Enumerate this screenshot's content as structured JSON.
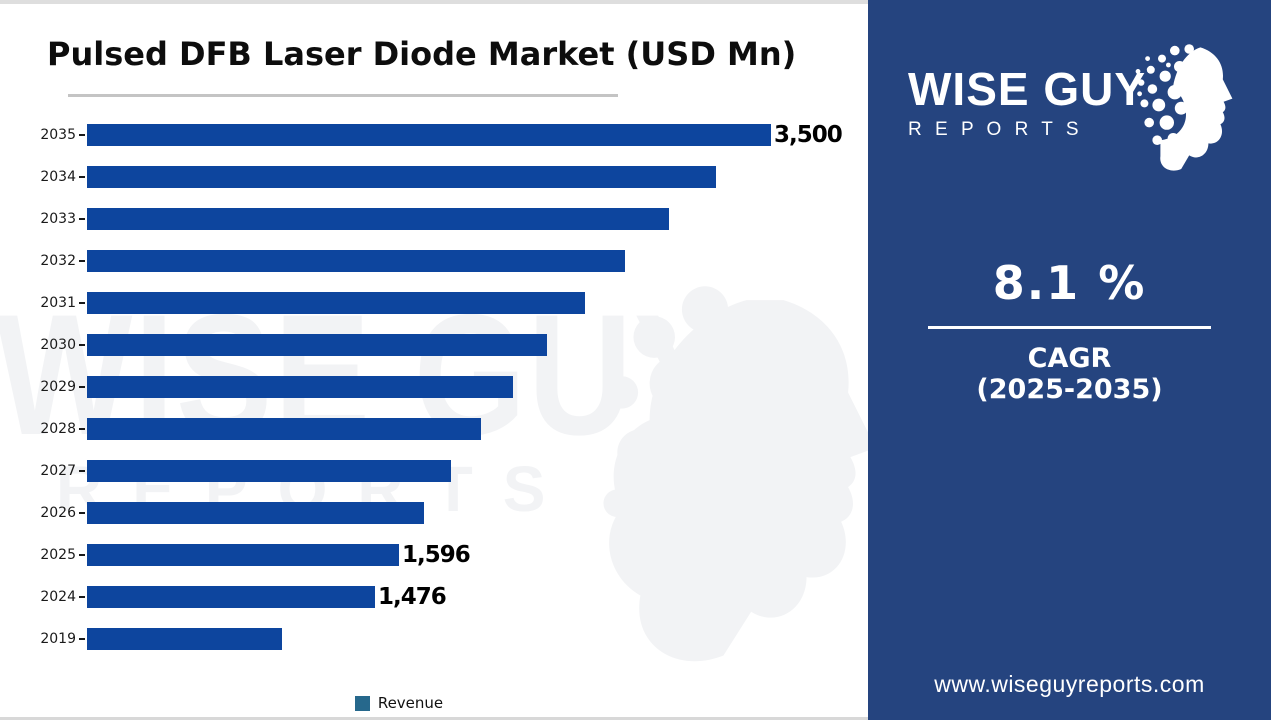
{
  "title": "Pulsed DFB Laser Diode Market (USD Mn)",
  "chart_data": {
    "type": "bar",
    "orientation": "horizontal",
    "title": "Pulsed DFB Laser Diode Market (USD Mn)",
    "xlabel": "",
    "ylabel": "",
    "xlim": [
      0,
      3500
    ],
    "grid": false,
    "bar_color": "#0d459e",
    "categories": [
      "2035",
      "2034",
      "2033",
      "2032",
      "2031",
      "2030",
      "2029",
      "2028",
      "2027",
      "2026",
      "2025",
      "2024",
      "2019"
    ],
    "values": [
      3500,
      3217,
      2976,
      2753,
      2547,
      2356,
      2180,
      2016,
      1865,
      1725,
      1596,
      1476,
      1000
    ],
    "bar_labels": [
      "3,500",
      "",
      "",
      "",
      "",
      "",
      "",
      "",
      "",
      "",
      "1,596",
      "1,476",
      ""
    ],
    "legend": {
      "label": "Revenue",
      "color": "#26688c",
      "position": "bottom-center"
    }
  },
  "watermark": {
    "line1": "WISE GUY",
    "line2": "REPORTS"
  },
  "panel": {
    "bg_color": "#25447f",
    "logo": {
      "line1": "WISE GUY",
      "line2": "R E P O R T S"
    },
    "cagr_value": "8.1 %",
    "cagr_label_line1": "CAGR",
    "cagr_label_line2": "(2025-2035)",
    "website": "www.wiseguyreports.com"
  }
}
